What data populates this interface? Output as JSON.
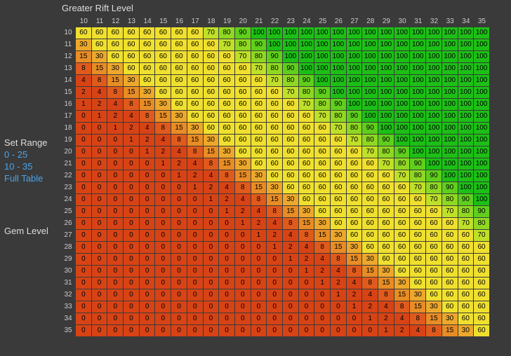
{
  "title": "Greater Rift Level",
  "sidebar": {
    "rangeLabel": "Set Range",
    "range1": "0 - 25",
    "range2": "10 - 35",
    "fullTable": "Full Table",
    "gemLabel": "Gem Level"
  },
  "colHeaders": [
    10,
    11,
    12,
    13,
    14,
    15,
    16,
    17,
    18,
    19,
    20,
    21,
    22,
    23,
    24,
    25,
    26,
    27,
    28,
    29,
    30,
    31,
    32,
    33,
    34,
    35
  ],
  "rowHeaders": [
    10,
    11,
    12,
    13,
    14,
    15,
    16,
    17,
    18,
    19,
    20,
    21,
    22,
    23,
    24,
    25,
    26,
    27,
    28,
    29,
    30,
    31,
    32,
    33,
    34,
    35
  ],
  "grid": [
    [
      60,
      60,
      60,
      60,
      60,
      60,
      60,
      60,
      70,
      80,
      90,
      100,
      100,
      100,
      100,
      100,
      100,
      100,
      100,
      100,
      100,
      100,
      100,
      100,
      100,
      100
    ],
    [
      30,
      60,
      60,
      60,
      60,
      60,
      60,
      60,
      60,
      70,
      80,
      90,
      100,
      100,
      100,
      100,
      100,
      100,
      100,
      100,
      100,
      100,
      100,
      100,
      100,
      100
    ],
    [
      15,
      30,
      60,
      60,
      60,
      60,
      60,
      60,
      60,
      60,
      70,
      80,
      90,
      100,
      100,
      100,
      100,
      100,
      100,
      100,
      100,
      100,
      100,
      100,
      100,
      100
    ],
    [
      8,
      15,
      30,
      60,
      60,
      60,
      60,
      60,
      60,
      60,
      60,
      70,
      80,
      90,
      100,
      100,
      100,
      100,
      100,
      100,
      100,
      100,
      100,
      100,
      100,
      100
    ],
    [
      4,
      8,
      15,
      30,
      60,
      60,
      60,
      60,
      60,
      60,
      60,
      60,
      70,
      80,
      90,
      100,
      100,
      100,
      100,
      100,
      100,
      100,
      100,
      100,
      100,
      100
    ],
    [
      2,
      4,
      8,
      15,
      30,
      60,
      60,
      60,
      60,
      60,
      60,
      60,
      60,
      70,
      80,
      90,
      100,
      100,
      100,
      100,
      100,
      100,
      100,
      100,
      100,
      100
    ],
    [
      1,
      2,
      4,
      8,
      15,
      30,
      60,
      60,
      60,
      60,
      60,
      60,
      60,
      60,
      70,
      80,
      90,
      100,
      100,
      100,
      100,
      100,
      100,
      100,
      100,
      100
    ],
    [
      0,
      1,
      2,
      4,
      8,
      15,
      30,
      60,
      60,
      60,
      60,
      60,
      60,
      60,
      60,
      70,
      80,
      90,
      100,
      100,
      100,
      100,
      100,
      100,
      100,
      100
    ],
    [
      0,
      0,
      1,
      2,
      4,
      8,
      15,
      30,
      60,
      60,
      60,
      60,
      60,
      60,
      60,
      60,
      70,
      80,
      90,
      100,
      100,
      100,
      100,
      100,
      100,
      100
    ],
    [
      0,
      0,
      0,
      1,
      2,
      4,
      8,
      15,
      30,
      60,
      60,
      60,
      60,
      60,
      60,
      60,
      60,
      70,
      80,
      90,
      100,
      100,
      100,
      100,
      100,
      100
    ],
    [
      0,
      0,
      0,
      0,
      1,
      2,
      4,
      8,
      15,
      30,
      60,
      60,
      60,
      60,
      60,
      60,
      60,
      60,
      70,
      80,
      90,
      100,
      100,
      100,
      100,
      100
    ],
    [
      0,
      0,
      0,
      0,
      0,
      1,
      2,
      4,
      8,
      15,
      30,
      60,
      60,
      60,
      60,
      60,
      60,
      60,
      60,
      70,
      80,
      90,
      100,
      100,
      100,
      100
    ],
    [
      0,
      0,
      0,
      0,
      0,
      0,
      1,
      2,
      4,
      8,
      15,
      30,
      60,
      60,
      60,
      60,
      60,
      60,
      60,
      60,
      70,
      80,
      90,
      100,
      100,
      100
    ],
    [
      0,
      0,
      0,
      0,
      0,
      0,
      0,
      1,
      2,
      4,
      8,
      15,
      30,
      60,
      60,
      60,
      60,
      60,
      60,
      60,
      60,
      70,
      80,
      90,
      100,
      100
    ],
    [
      0,
      0,
      0,
      0,
      0,
      0,
      0,
      0,
      1,
      2,
      4,
      8,
      15,
      30,
      60,
      60,
      60,
      60,
      60,
      60,
      60,
      60,
      70,
      80,
      90,
      100
    ],
    [
      0,
      0,
      0,
      0,
      0,
      0,
      0,
      0,
      0,
      1,
      2,
      4,
      8,
      15,
      30,
      60,
      60,
      60,
      60,
      60,
      60,
      60,
      60,
      70,
      80,
      90
    ],
    [
      0,
      0,
      0,
      0,
      0,
      0,
      0,
      0,
      0,
      0,
      1,
      2,
      4,
      8,
      15,
      30,
      60,
      60,
      60,
      60,
      60,
      60,
      60,
      60,
      70,
      80
    ],
    [
      0,
      0,
      0,
      0,
      0,
      0,
      0,
      0,
      0,
      0,
      0,
      1,
      2,
      4,
      8,
      15,
      30,
      60,
      60,
      60,
      60,
      60,
      60,
      60,
      60,
      70
    ],
    [
      0,
      0,
      0,
      0,
      0,
      0,
      0,
      0,
      0,
      0,
      0,
      0,
      1,
      2,
      4,
      8,
      15,
      30,
      60,
      60,
      60,
      60,
      60,
      60,
      60,
      60
    ],
    [
      0,
      0,
      0,
      0,
      0,
      0,
      0,
      0,
      0,
      0,
      0,
      0,
      0,
      1,
      2,
      4,
      8,
      15,
      30,
      60,
      60,
      60,
      60,
      60,
      60,
      60
    ],
    [
      0,
      0,
      0,
      0,
      0,
      0,
      0,
      0,
      0,
      0,
      0,
      0,
      0,
      0,
      1,
      2,
      4,
      8,
      15,
      30,
      60,
      60,
      60,
      60,
      60,
      60
    ],
    [
      0,
      0,
      0,
      0,
      0,
      0,
      0,
      0,
      0,
      0,
      0,
      0,
      0,
      0,
      0,
      1,
      2,
      4,
      8,
      15,
      30,
      60,
      60,
      60,
      60,
      60
    ],
    [
      0,
      0,
      0,
      0,
      0,
      0,
      0,
      0,
      0,
      0,
      0,
      0,
      0,
      0,
      0,
      0,
      1,
      2,
      4,
      8,
      15,
      30,
      60,
      60,
      60,
      60
    ],
    [
      0,
      0,
      0,
      0,
      0,
      0,
      0,
      0,
      0,
      0,
      0,
      0,
      0,
      0,
      0,
      0,
      0,
      1,
      2,
      4,
      8,
      15,
      30,
      60,
      60,
      60
    ],
    [
      0,
      0,
      0,
      0,
      0,
      0,
      0,
      0,
      0,
      0,
      0,
      0,
      0,
      0,
      0,
      0,
      0,
      0,
      1,
      2,
      4,
      8,
      15,
      30,
      60,
      60
    ],
    [
      0,
      0,
      0,
      0,
      0,
      0,
      0,
      0,
      0,
      0,
      0,
      0,
      0,
      0,
      0,
      0,
      0,
      0,
      0,
      1,
      2,
      4,
      8,
      15,
      30,
      60
    ]
  ],
  "colors": {
    "0": "#d84315",
    "1": "#d84315",
    "2": "#d84315",
    "4": "#d84315",
    "8": "#e05a1c",
    "15": "#e88c24",
    "30": "#eda82c",
    "60": "#f0e02e",
    "70": "#bfe028",
    "80": "#8fd822",
    "90": "#5fcf1c",
    "100": "#1cc015"
  },
  "cellTextColor": "#000000"
}
